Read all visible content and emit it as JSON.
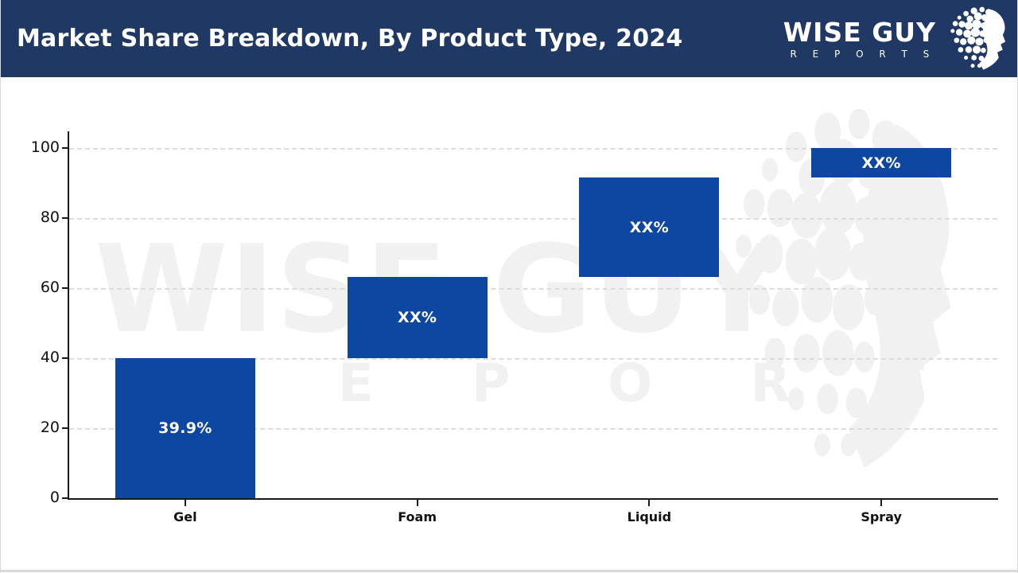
{
  "header": {
    "title": "Market Share Breakdown, By Product Type, 2024",
    "logo": {
      "line1": "WISE GUY",
      "line2": "R E P O R T S"
    }
  },
  "watermark": {
    "line1": "WISE GUY",
    "line2": "R E P O R T S"
  },
  "chart_data": {
    "type": "bar",
    "subtype": "waterfall",
    "title": "Market Share Breakdown, By Product Type, 2024",
    "categories": [
      "Gel",
      "Foam",
      "Liquid",
      "Spray"
    ],
    "segments": [
      {
        "category": "Gel",
        "start": 0,
        "end": 39.9,
        "label": "39.9%"
      },
      {
        "category": "Foam",
        "start": 39.9,
        "end": 63.1,
        "label": "XX%"
      },
      {
        "category": "Liquid",
        "start": 63.1,
        "end": 91.5,
        "label": "XX%"
      },
      {
        "category": "Spray",
        "start": 91.5,
        "end": 100,
        "label": "XX%"
      }
    ],
    "xlabel": "",
    "ylabel": "",
    "ylim": [
      0,
      100
    ],
    "yticks": [
      0,
      20,
      40,
      60,
      80,
      100
    ],
    "grid": "horizontal-dashed",
    "legend": "none",
    "bar_color": "#0d47a1",
    "bar_label_color": "#ffffff"
  },
  "colors": {
    "header_bg": "#1f3864",
    "bar": "#0d47a1",
    "grid": "#dcdcdc",
    "axis": "#1a1a1a",
    "watermark": "#f1f1f1",
    "page_border": "#d9d9d9"
  }
}
